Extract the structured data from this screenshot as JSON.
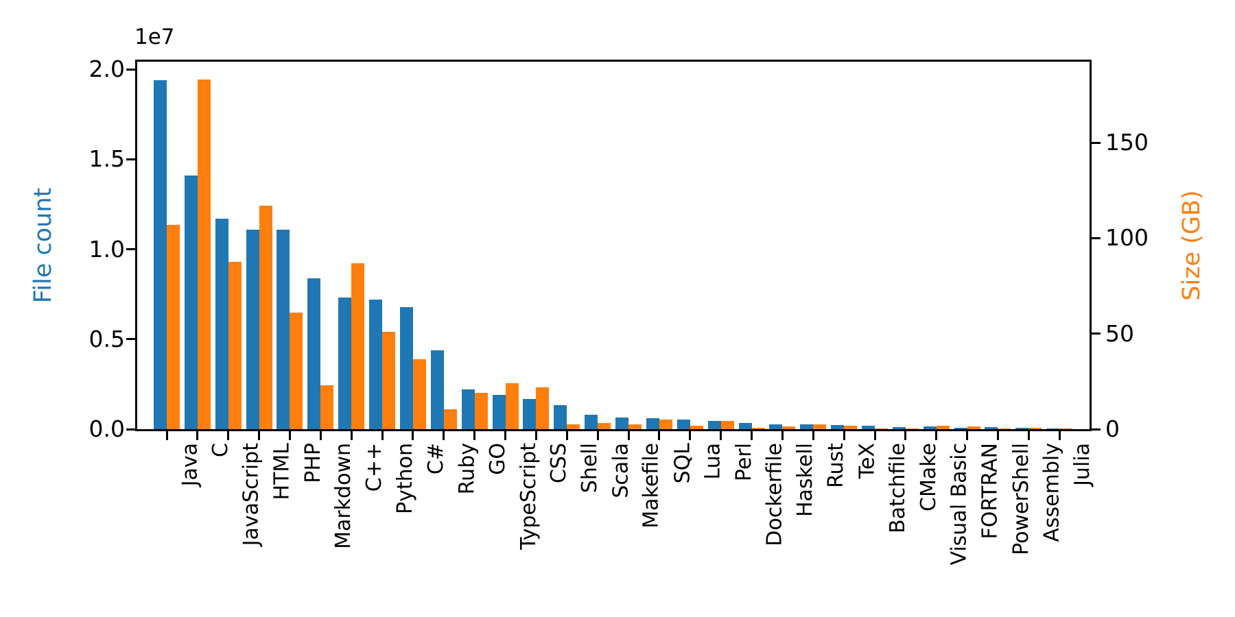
{
  "chart_data": {
    "type": "bar",
    "title": "",
    "xlabel": "",
    "ylabel_left": "File count",
    "ylabel_right": "Size (GB)",
    "offset_text": "1e7",
    "legend": "none",
    "grid": false,
    "categories": [
      "Java",
      "C",
      "JavaScript",
      "HTML",
      "PHP",
      "Markdown",
      "C++",
      "Python",
      "C#",
      "Ruby",
      "GO",
      "TypeScript",
      "CSS",
      "Shell",
      "Scala",
      "Makefile",
      "SQL",
      "Lua",
      "Perl",
      "Dockerfile",
      "Haskell",
      "Rust",
      "TeX",
      "Batchfile",
      "CMake",
      "Visual Basic",
      "FORTRAN",
      "PowerShell",
      "Assembly",
      "Julia"
    ],
    "series": [
      {
        "name": "File count",
        "axis": "left",
        "color": "#1f77b4",
        "values": [
          19400000,
          14100000,
          11700000,
          11100000,
          11100000,
          8400000,
          7300000,
          7200000,
          6800000,
          4400000,
          2220000,
          1900000,
          1660000,
          1330000,
          790000,
          640000,
          610000,
          520000,
          460000,
          330000,
          260000,
          280000,
          220000,
          190000,
          130000,
          140000,
          90000,
          110000,
          80000,
          30000
        ]
      },
      {
        "name": "Size (GB)",
        "axis": "right",
        "color": "#ff7f0e",
        "values": [
          107,
          183,
          87.5,
          117,
          61,
          23,
          87,
          51,
          36.5,
          10.5,
          19,
          24,
          22,
          2.5,
          3.1,
          2.4,
          5,
          1.9,
          4.2,
          0.6,
          1.5,
          2.4,
          1.9,
          0.4,
          0.3,
          1.7,
          1.4,
          0.3,
          0.6,
          0.2
        ]
      }
    ],
    "ylim_left": [
      0,
      20420000
    ],
    "ylim_right": [
      0,
      192.4
    ],
    "yticks_left": [
      {
        "v": 0,
        "label": "0.0"
      },
      {
        "v": 5000000,
        "label": "0.5"
      },
      {
        "v": 10000000,
        "label": "1.0"
      },
      {
        "v": 15000000,
        "label": "1.5"
      },
      {
        "v": 20000000,
        "label": "2.0"
      }
    ],
    "yticks_right": [
      {
        "v": 0,
        "label": "0"
      },
      {
        "v": 50,
        "label": "50"
      },
      {
        "v": 100,
        "label": "100"
      },
      {
        "v": 150,
        "label": "150"
      }
    ],
    "colors": {
      "file_count": "#1f77b4",
      "size_gb": "#ff7f0e",
      "axis": "#000000",
      "background": "#ffffff"
    }
  }
}
